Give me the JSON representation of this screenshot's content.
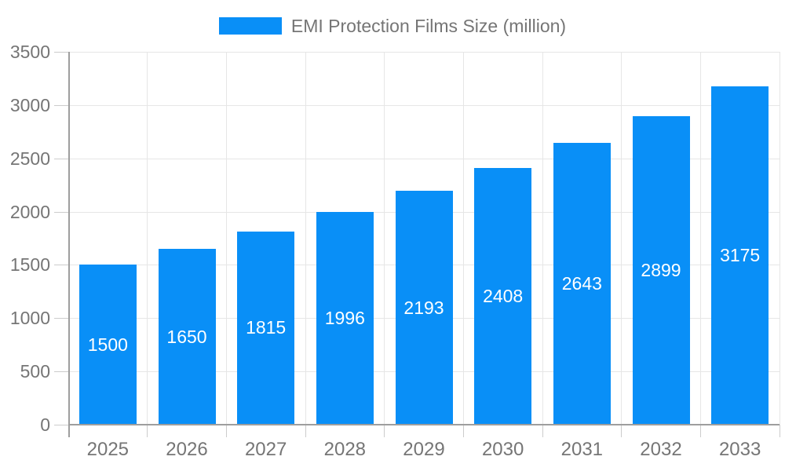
{
  "legend": {
    "label": "EMI Protection Films Size (million)"
  },
  "colors": {
    "bar": "#098FF7",
    "axis_line": "#9e9e9e",
    "grid_line": "#e6e6e6",
    "tick_line": "#cccccc",
    "tick_text": "#757575",
    "bar_label": "#ffffff",
    "background": "#ffffff"
  },
  "chart_data": {
    "type": "bar",
    "title": "EMI Protection Films Size (million)",
    "categories": [
      "2025",
      "2026",
      "2027",
      "2028",
      "2029",
      "2030",
      "2031",
      "2032",
      "2033"
    ],
    "values": [
      1500,
      1650,
      1815,
      1996,
      2193,
      2408,
      2643,
      2899,
      3175
    ],
    "xlabel": "",
    "ylabel": "",
    "ylim": [
      0,
      3500
    ],
    "yticks": [
      0,
      500,
      1000,
      1500,
      2000,
      2500,
      3000,
      3500
    ],
    "grid": true,
    "grid_vertical": true,
    "legend_position": "top-center",
    "bar_label_position": "inside-center",
    "bar_label_color": "#ffffff"
  }
}
